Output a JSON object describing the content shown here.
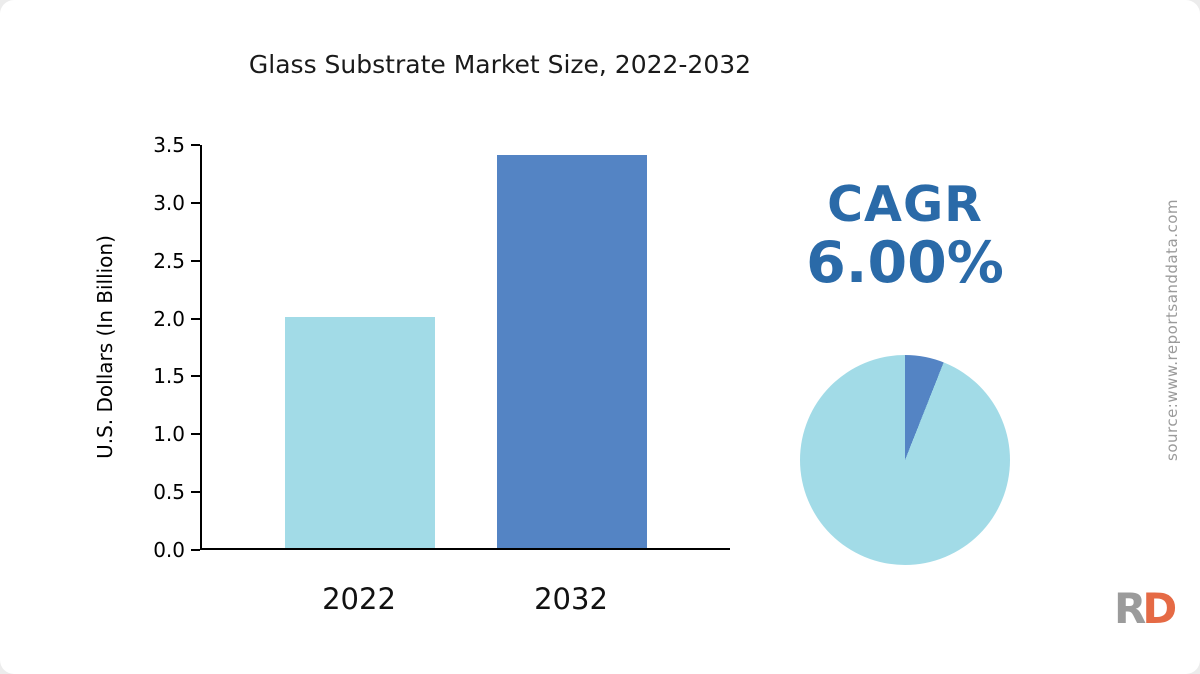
{
  "title": "Glass Substrate Market Size, 2022-2032",
  "chart_data": [
    {
      "type": "bar",
      "title": "Glass Substrate Market Size, 2022-2032",
      "categories": [
        "2022",
        "2032"
      ],
      "values": [
        2.0,
        3.4
      ],
      "xlabel": "",
      "ylabel": "U.S. Dollars (In Billion)",
      "ylim": [
        0,
        3.5
      ],
      "ytick_labels": [
        "0.0",
        "0.5",
        "1.0",
        "1.5",
        "2.0",
        "2.5",
        "3.0",
        "3.5"
      ],
      "bar_colors": [
        "#a2dbe7",
        "#5484c4"
      ],
      "grid": false,
      "legend": "none"
    },
    {
      "type": "pie",
      "title": "",
      "slices": [
        {
          "label": "CAGR",
          "value": 6,
          "color": "#5484c4"
        },
        {
          "label": "Remaining",
          "value": 94,
          "color": "#a2dbe7"
        }
      ],
      "start_angle_deg": 0,
      "legend": "none"
    }
  ],
  "cagr": {
    "label": "CAGR",
    "value": "6.00%",
    "color": "#2a6aa8"
  },
  "source": {
    "text": "source:www.reportsanddata.com",
    "color": "#9a9a9a"
  },
  "logo": {
    "r": "R",
    "r_color": "#9b9b9b",
    "d": "D",
    "d_color": "#e56a45"
  }
}
